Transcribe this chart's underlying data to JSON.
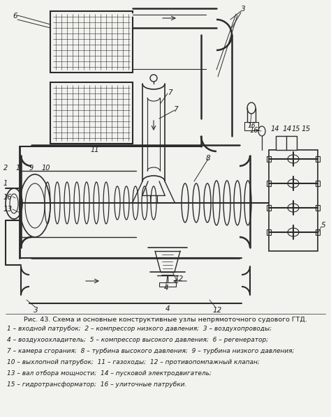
{
  "title": "Рис. 43. Схема и основные конструктивные узлы непрямоточного судового ГТД.",
  "legend_lines": [
    "1 – входной патрубок;  2 – компрессор низкого давления;  3 – воздухопроводы;",
    "4 – воздухоохладитель;  5 – компрессор высокого давления;  6 – регенератор;",
    "7 – камера сгорания;  8 – турбина высокого давления;  9 – турбина низкого давления;",
    "10 – выхлопной патрубок;  11 – газоходы;  12 – противопомпажный клапан;",
    "13 – вал отбора мощности;  14 – пусковой электродвигатель;",
    "15 – гидротрансформатор;  16 – улиточные патрубки."
  ],
  "bg_color": "#f2f2ee",
  "text_color": "#1a1a1a",
  "line_color": "#2a2a2a",
  "fig_width": 4.74,
  "fig_height": 5.98,
  "dpi": 100
}
